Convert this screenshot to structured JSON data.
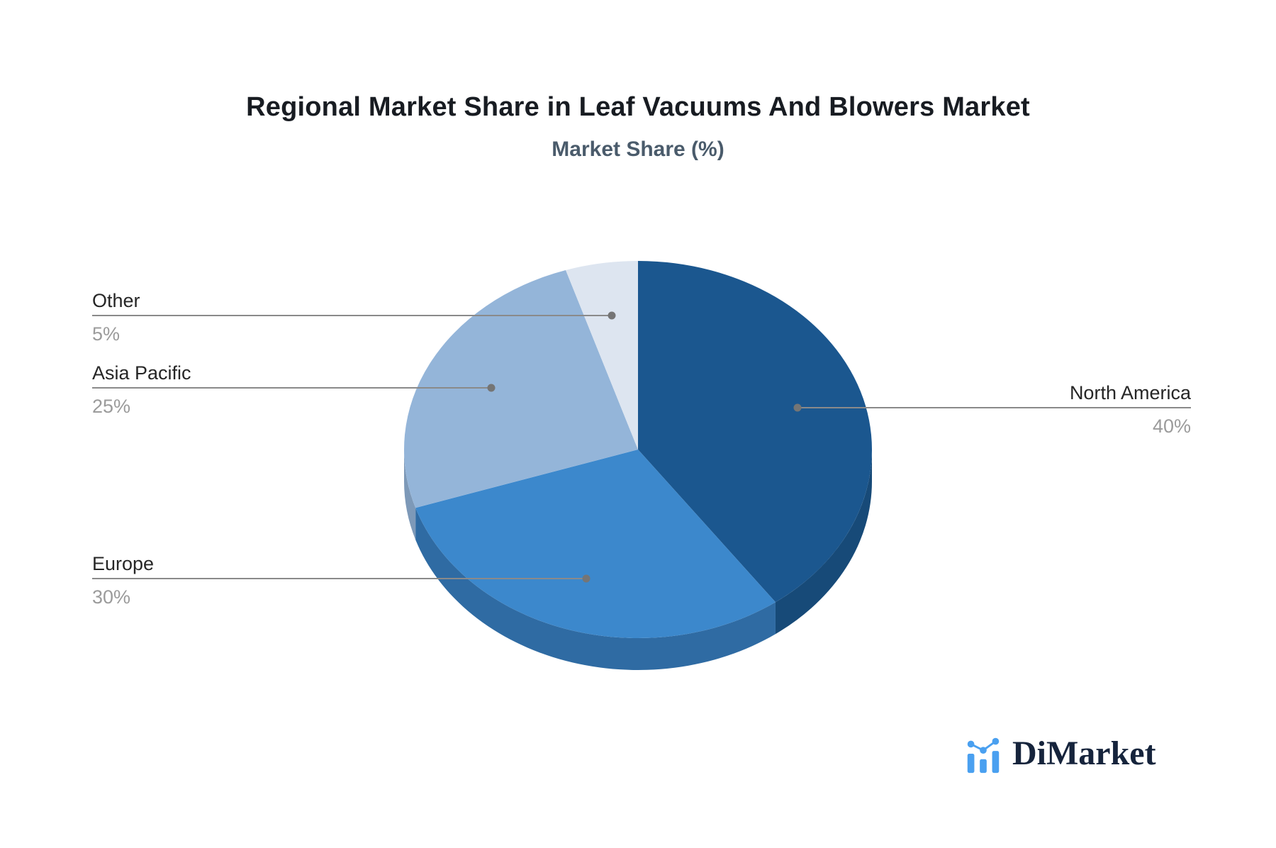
{
  "title": "Regional Market Share in Leaf Vacuums And Blowers Market",
  "subtitle": "Market Share (%)",
  "brand": {
    "name": "DiMarket",
    "text_color": "#16243c",
    "icon_color": "#4aa0f0"
  },
  "chart_data": {
    "type": "pie",
    "style": "3d",
    "title": "Regional Market Share in Leaf Vacuums And Blowers Market",
    "value_label": "Market Share (%)",
    "unit": "%",
    "start_angle": "12 o'clock",
    "direction": "clockwise",
    "legend_position": "leader-line labels (left and right of pie)",
    "slices": [
      {
        "label": "North America",
        "value": 40,
        "percent_label": "40%",
        "color": "#1b578f",
        "side_color": "#174a78"
      },
      {
        "label": "Europe",
        "value": 30,
        "percent_label": "30%",
        "color": "#3c88cc",
        "side_color": "#2f6ba3"
      },
      {
        "label": "Asia Pacific",
        "value": 25,
        "percent_label": "25%",
        "color": "#94b5d9",
        "side_color": "#7d99b8"
      },
      {
        "label": "Other",
        "value": 5,
        "percent_label": "5%",
        "color": "#dde5f0",
        "side_color": "#c4cfdf"
      }
    ],
    "leader_line_color": "#8a8a8a",
    "label_color": "#262626",
    "percent_color": "#9b9b9b",
    "background": "#ffffff"
  }
}
